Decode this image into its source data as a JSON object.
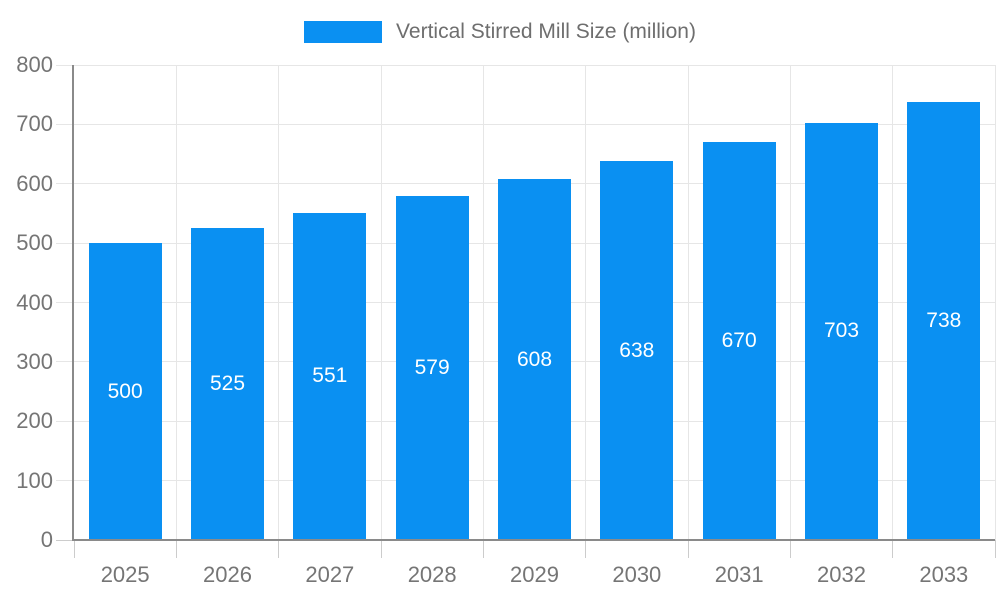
{
  "chart_data": {
    "type": "bar",
    "title": "",
    "legend": {
      "label": "Vertical Stirred Mill Size (million)",
      "position": "top"
    },
    "categories": [
      "2025",
      "2026",
      "2027",
      "2028",
      "2029",
      "2030",
      "2031",
      "2032",
      "2033"
    ],
    "series": [
      {
        "name": "Vertical Stirred Mill Size (million)",
        "values": [
          500,
          525,
          551,
          579,
          608,
          638,
          670,
          703,
          738
        ]
      }
    ],
    "xlabel": "",
    "ylabel": "",
    "ylim": [
      0,
      800
    ],
    "ytick_step": 100,
    "ytick_labels": [
      "0",
      "100",
      "200",
      "300",
      "400",
      "500",
      "600",
      "700",
      "800"
    ],
    "grid": true,
    "value_labels": "inside-center",
    "colors": {
      "bar": "#0a90f2",
      "axis_line": "#8a8a8a",
      "grid_line": "#e6e6e6",
      "tick_line": "#cccccc",
      "axis_text": "#757575",
      "value_text": "#ffffff",
      "background": "#ffffff"
    }
  }
}
